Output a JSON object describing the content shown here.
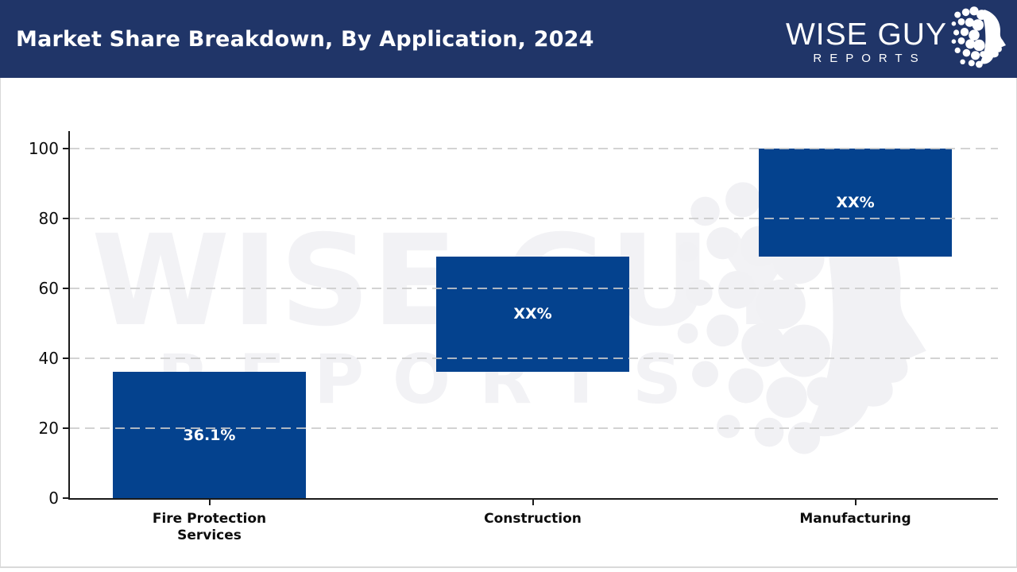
{
  "header": {
    "title": "Market Share Breakdown, By Application, 2024",
    "logo": {
      "line1": "WISE GUY",
      "line2": "REPORTS"
    }
  },
  "watermark": {
    "line1": "WISE GUY",
    "line2": "REPORTS"
  },
  "chart_data": {
    "type": "bar",
    "subtype": "stacked-waterfall-percentage",
    "title": "Market Share Breakdown, By Application, 2024",
    "categories": [
      "Fire Protection Services",
      "Construction",
      "Manufacturing"
    ],
    "bars": [
      {
        "category": "Fire Protection Services",
        "start": 0,
        "end": 36.1,
        "label": "36.1%"
      },
      {
        "category": "Construction",
        "start": 36.1,
        "end": 69.2,
        "label": "XX%"
      },
      {
        "category": "Manufacturing",
        "start": 69.2,
        "end": 100,
        "label": "XX%"
      }
    ],
    "ylim": [
      0,
      100
    ],
    "yticks": [
      0,
      20,
      40,
      60,
      80,
      100
    ],
    "grid": "horizontal-dashed",
    "legend": "none",
    "bar_color": "#04428e",
    "bar_label_color": "#ffffff",
    "axis_color": "#1a1a1a",
    "grid_color": "#cccccc"
  }
}
